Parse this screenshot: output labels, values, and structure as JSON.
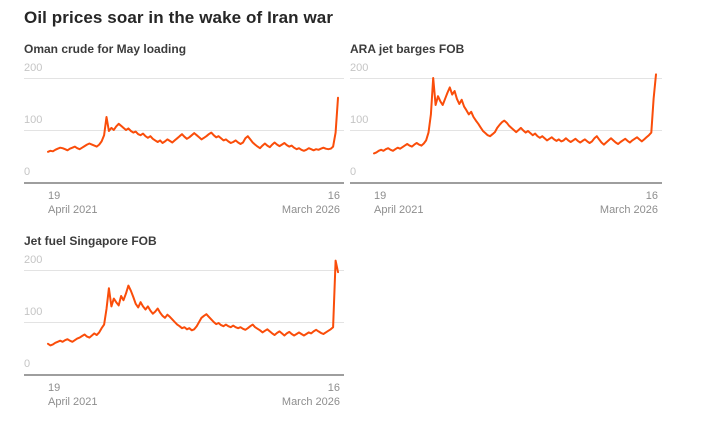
{
  "page": {
    "title": "Oil prices soar in the wake of Iran war"
  },
  "style": {
    "line_color": "#fa4d0a",
    "grid_color": "#e3e3e3",
    "axis_color": "#9e9e9e",
    "ytick_color": "#c5c5c5",
    "xtick_color": "#8e8e8e"
  },
  "chart_data": [
    {
      "type": "line",
      "title": "Oman crude for May loading",
      "ylim": [
        0,
        200
      ],
      "yticks": [
        200,
        100,
        0
      ],
      "ytick_labels": [
        "200",
        "100",
        "0"
      ],
      "x_range": [
        "19 April 2021",
        "16 March 2026"
      ],
      "xaxis": {
        "left_day": "19",
        "left_date": "April 2021",
        "right_day": "16",
        "right_date": "March 2026"
      },
      "grid": true,
      "legend": false,
      "values": [
        58,
        60,
        59,
        62,
        64,
        66,
        65,
        63,
        61,
        64,
        66,
        68,
        65,
        63,
        66,
        69,
        72,
        74,
        72,
        70,
        68,
        72,
        78,
        90,
        125,
        98,
        104,
        100,
        107,
        112,
        108,
        104,
        100,
        103,
        98,
        95,
        97,
        92,
        90,
        93,
        88,
        85,
        88,
        83,
        80,
        77,
        80,
        75,
        78,
        82,
        79,
        76,
        80,
        84,
        88,
        92,
        87,
        83,
        86,
        90,
        94,
        90,
        86,
        82,
        85,
        88,
        92,
        95,
        90,
        86,
        88,
        84,
        80,
        82,
        78,
        75,
        77,
        80,
        76,
        73,
        76,
        84,
        88,
        82,
        76,
        72,
        68,
        65,
        70,
        74,
        70,
        67,
        72,
        76,
        72,
        69,
        72,
        75,
        71,
        68,
        70,
        66,
        63,
        65,
        62,
        60,
        62,
        65,
        63,
        61,
        63,
        62,
        64,
        66,
        64,
        63,
        64,
        68,
        95,
        162
      ]
    },
    {
      "type": "line",
      "title": "ARA jet barges FOB",
      "ylim": [
        0,
        200
      ],
      "yticks": [
        200,
        100,
        0
      ],
      "ytick_labels": [
        "200",
        "100",
        "0"
      ],
      "x_range": [
        "19 April 2021",
        "16 March 2026"
      ],
      "xaxis": {
        "left_day": "19",
        "left_date": "April 2021",
        "right_day": "16",
        "right_date": "March 2026"
      },
      "grid": true,
      "legend": false,
      "values": [
        55,
        57,
        60,
        62,
        60,
        63,
        65,
        62,
        60,
        63,
        66,
        64,
        67,
        70,
        73,
        70,
        68,
        72,
        75,
        72,
        70,
        74,
        80,
        95,
        130,
        200,
        148,
        165,
        155,
        148,
        160,
        172,
        182,
        168,
        175,
        160,
        150,
        158,
        145,
        138,
        130,
        135,
        125,
        118,
        112,
        105,
        98,
        94,
        90,
        88,
        92,
        96,
        104,
        110,
        115,
        118,
        114,
        108,
        104,
        100,
        96,
        100,
        104,
        99,
        95,
        98,
        94,
        90,
        93,
        88,
        85,
        88,
        84,
        80,
        83,
        86,
        82,
        79,
        82,
        78,
        80,
        84,
        80,
        77,
        80,
        83,
        79,
        76,
        79,
        82,
        78,
        75,
        78,
        84,
        88,
        82,
        76,
        72,
        76,
        80,
        84,
        80,
        76,
        73,
        77,
        80,
        83,
        79,
        76,
        80,
        83,
        86,
        82,
        78,
        82,
        86,
        90,
        95,
        160,
        207
      ]
    },
    {
      "type": "line",
      "title": "Jet fuel Singapore FOB",
      "ylim": [
        0,
        200
      ],
      "yticks": [
        200,
        100,
        0
      ],
      "ytick_labels": [
        "200",
        "100",
        "0"
      ],
      "x_range": [
        "19 April 2021",
        "16 March 2026"
      ],
      "xaxis": {
        "left_day": "19",
        "left_date": "April 2021",
        "right_day": "16",
        "right_date": "March 2026"
      },
      "grid": true,
      "legend": false,
      "values": [
        58,
        55,
        57,
        60,
        62,
        64,
        62,
        65,
        67,
        64,
        62,
        65,
        68,
        70,
        73,
        76,
        72,
        70,
        74,
        78,
        75,
        80,
        88,
        95,
        125,
        165,
        130,
        145,
        138,
        132,
        150,
        142,
        155,
        170,
        160,
        148,
        135,
        128,
        138,
        130,
        124,
        130,
        122,
        116,
        120,
        126,
        118,
        112,
        108,
        114,
        110,
        105,
        100,
        95,
        92,
        88,
        90,
        86,
        88,
        84,
        86,
        92,
        100,
        108,
        112,
        115,
        110,
        105,
        100,
        96,
        98,
        94,
        92,
        95,
        92,
        90,
        93,
        90,
        88,
        90,
        87,
        85,
        88,
        92,
        95,
        90,
        87,
        84,
        80,
        83,
        86,
        82,
        78,
        75,
        79,
        82,
        78,
        74,
        78,
        81,
        77,
        74,
        77,
        80,
        77,
        74,
        77,
        80,
        78,
        82,
        85,
        82,
        79,
        77,
        80,
        83,
        86,
        90,
        218,
        196
      ]
    }
  ]
}
